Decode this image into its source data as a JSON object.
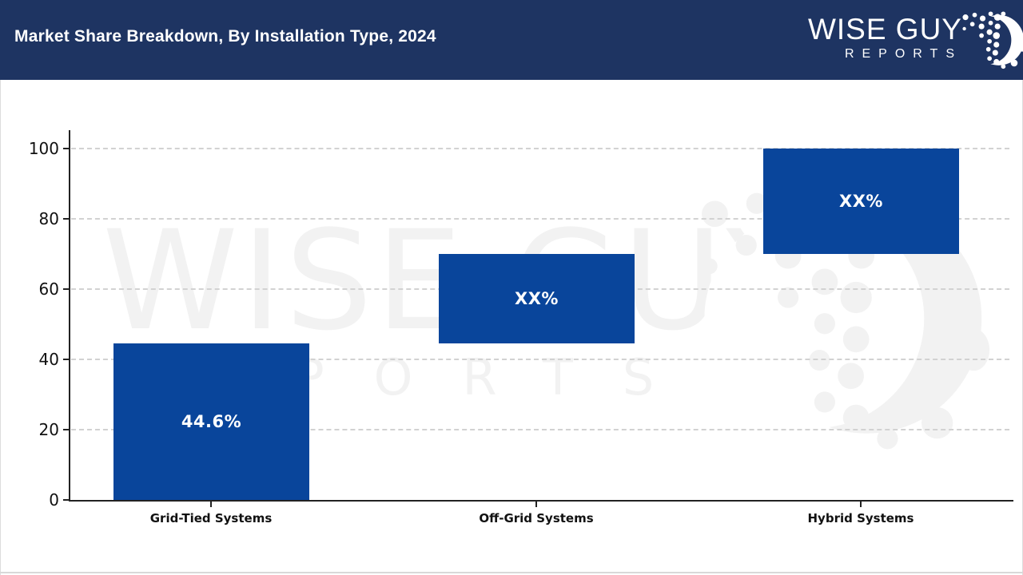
{
  "header": {
    "title": "Market Share Breakdown, By Installation Type, 2024",
    "background_color": "#1e3462"
  },
  "logo": {
    "line1": "WISE GUY",
    "line2": "REPORTS",
    "icon": "dotted-head-profile"
  },
  "watermark": {
    "line1": "WISE GUY",
    "line2": "REPORTS",
    "icon": "dotted-head-profile"
  },
  "chart_data": {
    "type": "bar",
    "variant": "floating-segment-bars",
    "title": "Market Share Breakdown, By Installation Type, 2024",
    "categories": [
      "Grid-Tied Systems",
      "Off-Grid Systems",
      "Hybrid Systems"
    ],
    "segments": [
      {
        "category": "Grid-Tied Systems",
        "from": 0,
        "to": 44.6,
        "label": "44.6%"
      },
      {
        "category": "Off-Grid Systems",
        "from": 44.6,
        "to": 70,
        "label": "XX%"
      },
      {
        "category": "Hybrid Systems",
        "from": 70,
        "to": 100,
        "label": "XX%"
      }
    ],
    "xlabel": "",
    "ylabel": "",
    "ylim": [
      0,
      100
    ],
    "yticks": [
      0,
      20,
      40,
      60,
      80,
      100
    ],
    "grid": "horizontal dashed",
    "legend": "none",
    "bar_color": "#09459b",
    "bar_label_color": "#ffffff"
  }
}
